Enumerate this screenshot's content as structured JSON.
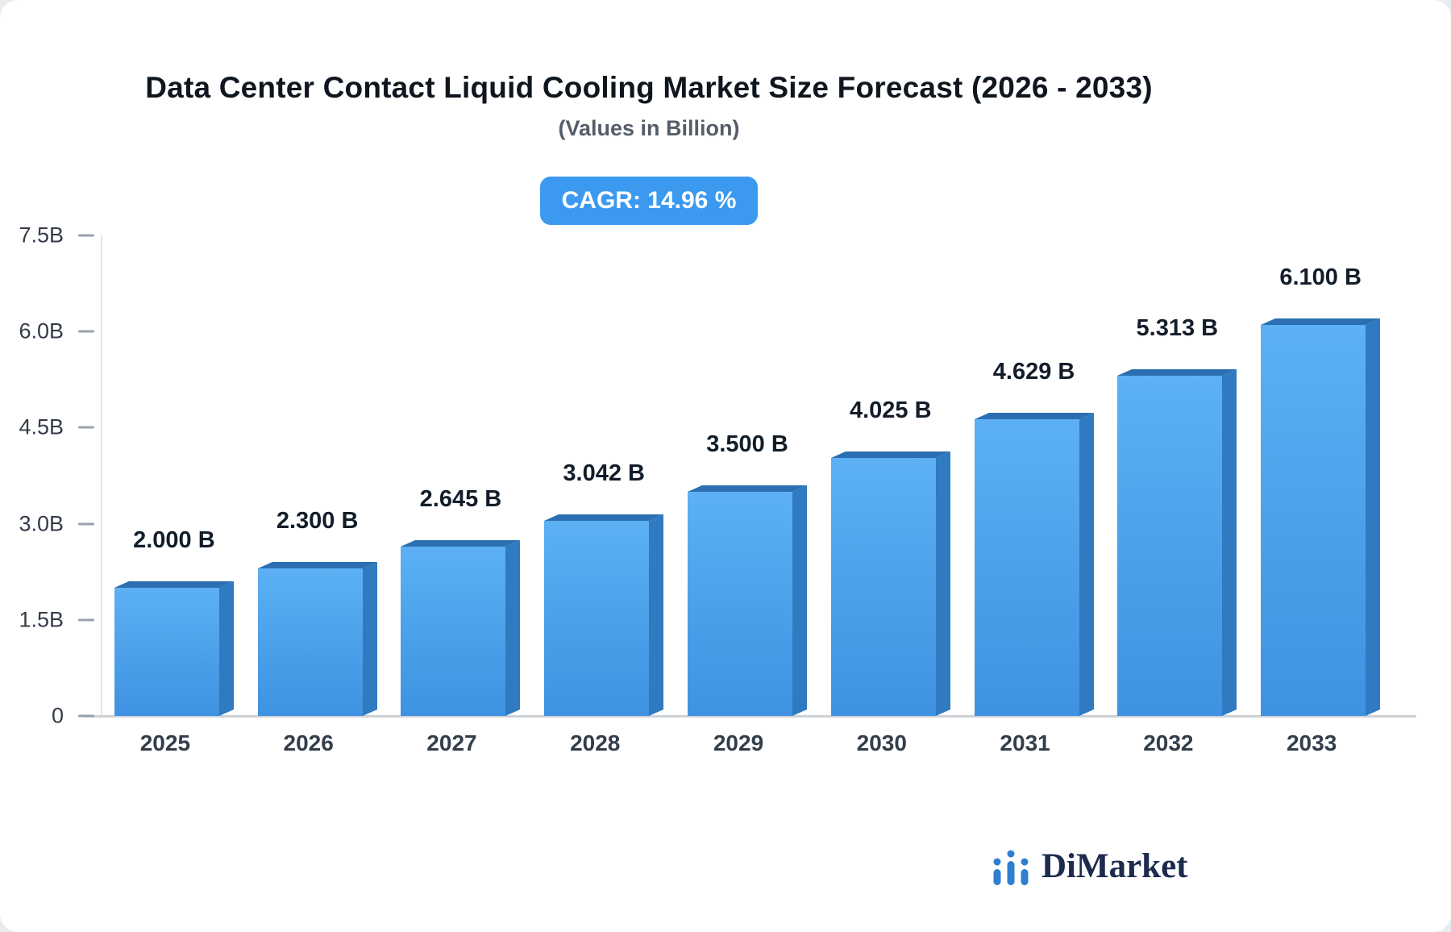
{
  "header": {
    "title": "Data Center Contact Liquid Cooling Market Size Forecast (2026 - 2033)",
    "subtitle": "(Values in Billion)",
    "cagr_badge": "CAGR: 14.96 %"
  },
  "chart_data": {
    "type": "bar",
    "title": "Data Center Contact Liquid Cooling Market Size Forecast (2026 - 2033)",
    "subtitle": "(Values in Billion)",
    "cagr_percent": 14.96,
    "unit": "Billion",
    "categories": [
      "2025",
      "2026",
      "2027",
      "2028",
      "2029",
      "2030",
      "2031",
      "2032",
      "2033"
    ],
    "values": [
      2.0,
      2.3,
      2.645,
      3.042,
      3.5,
      4.025,
      4.629,
      5.313,
      6.1
    ],
    "value_labels": [
      "2.000 B",
      "2.300 B",
      "2.645 B",
      "3.042 B",
      "3.500 B",
      "4.025 B",
      "4.629 B",
      "5.313 B",
      "6.100 B"
    ],
    "xlabel": "",
    "ylabel": "",
    "ylim": [
      0,
      7.5
    ],
    "yticks": [
      "0",
      "1.5B",
      "3.0B",
      "4.5B",
      "6.0B",
      "7.5B"
    ],
    "ytick_values": [
      0,
      1.5,
      3.0,
      4.5,
      6.0,
      7.5
    ],
    "grid": false,
    "legend": false,
    "bar_front_color": "#4aa2ec",
    "bar_side_color": "#2f7ac0",
    "bar_top_color": "#2b6fb2",
    "badge_color": "#3b99f0"
  },
  "logo": {
    "text": "DiMarket",
    "icon": "bar-chart-logo-icon",
    "icon_color": "#2e7fd0",
    "text_color": "#1c2b4e"
  }
}
